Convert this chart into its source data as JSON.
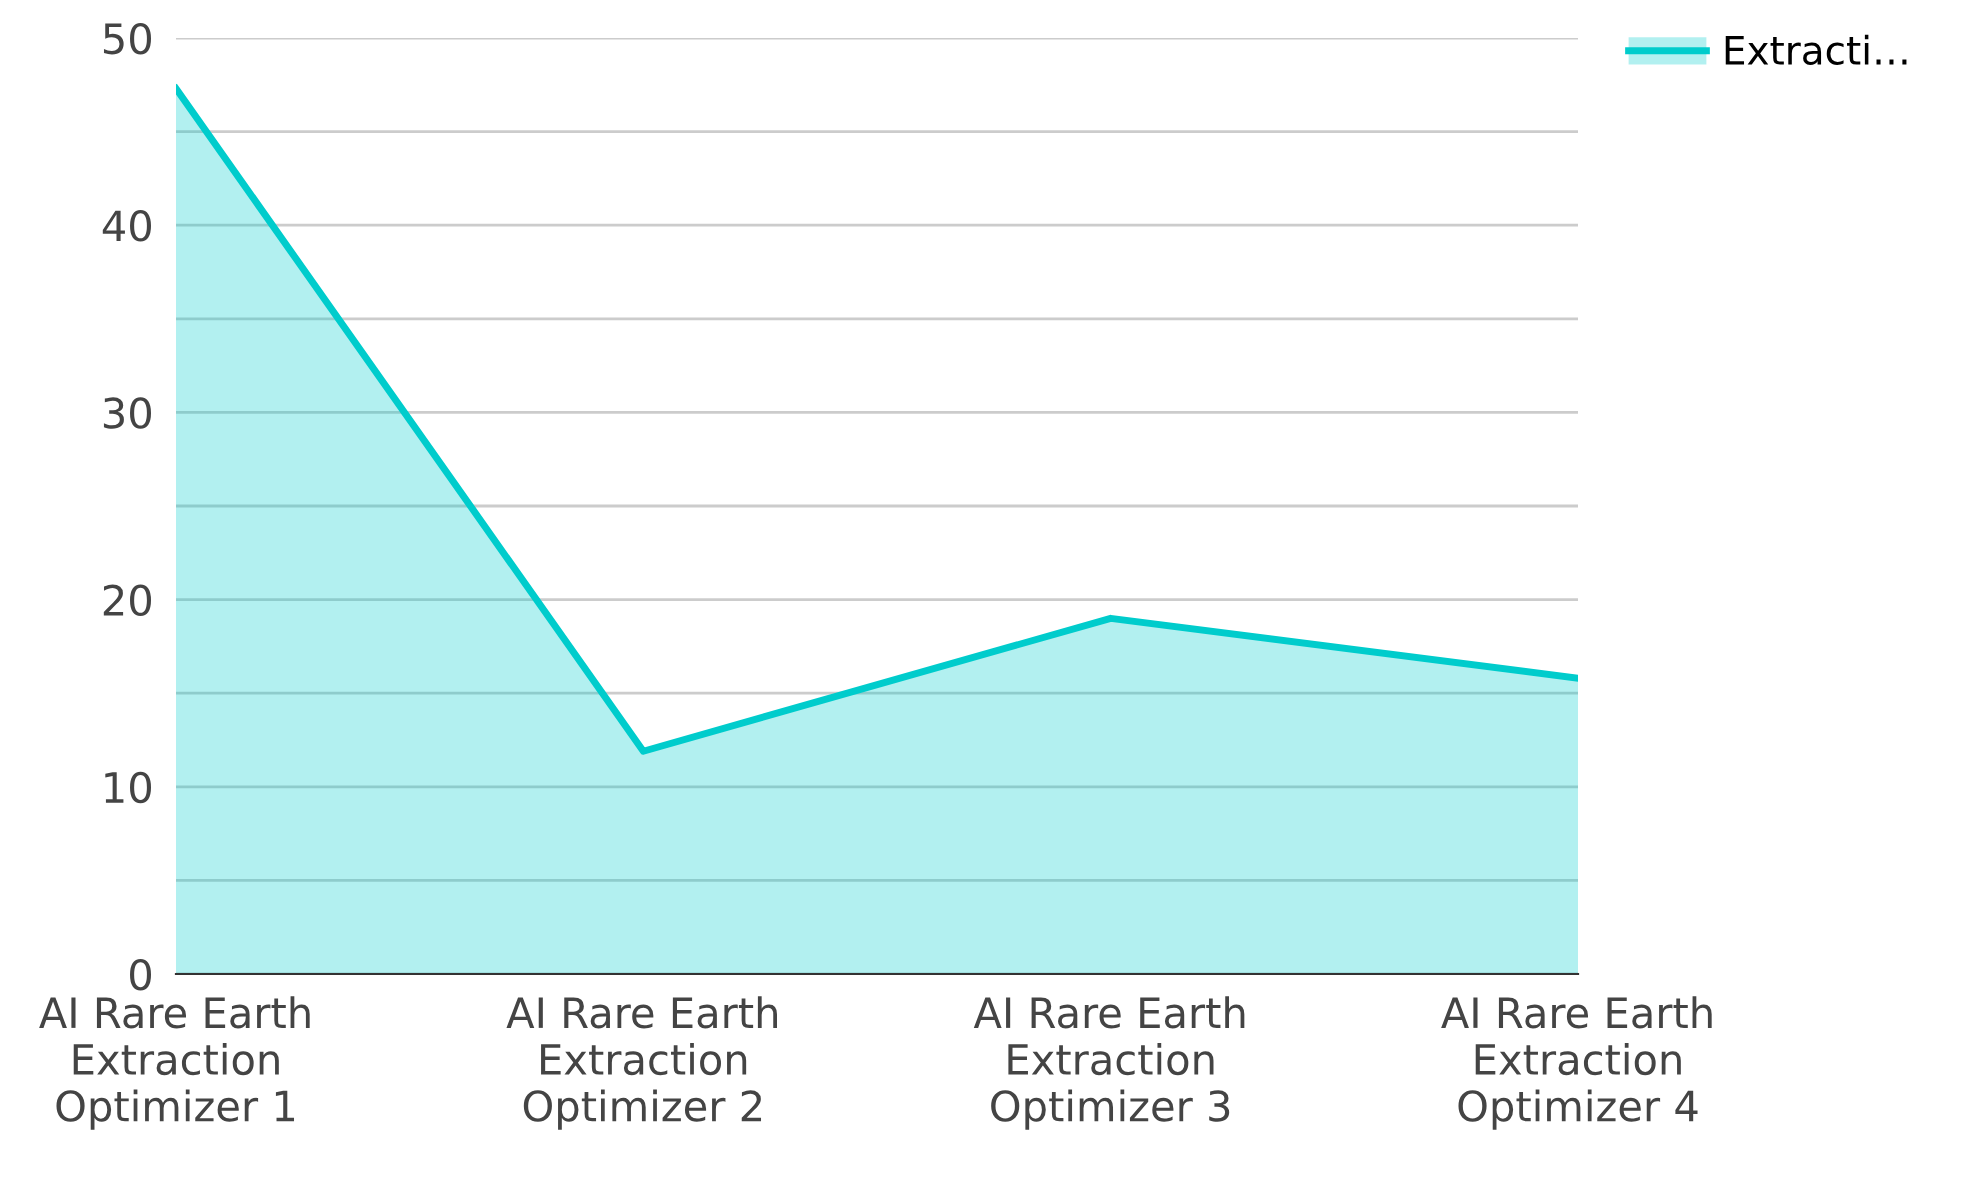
{
  "chart_data": {
    "type": "area",
    "categories": [
      "AI Rare Earth\nExtraction\nOptimizer 1",
      "AI Rare Earth\nExtraction\nOptimizer 2",
      "AI Rare Earth\nExtraction\nOptimizer 3",
      "AI Rare Earth\nExtraction\nOptimizer 4"
    ],
    "series": [
      {
        "name": "Extracti…",
        "color": "#00cccc",
        "values": [
          47.3,
          11.9,
          19.0,
          15.8
        ]
      }
    ],
    "ylim": [
      0,
      50
    ],
    "yticks": [
      0,
      {
        "value": 5,
        "label": null
      },
      10,
      {
        "value": 15,
        "label": null
      },
      20,
      {
        "value": 25,
        "label": null
      },
      30,
      {
        "value": 35,
        "label": null
      },
      40,
      {
        "value": 45,
        "label": null
      },
      50
    ],
    "grid": "y",
    "legend": "top right",
    "marker": "none",
    "line_style": "solid"
  }
}
